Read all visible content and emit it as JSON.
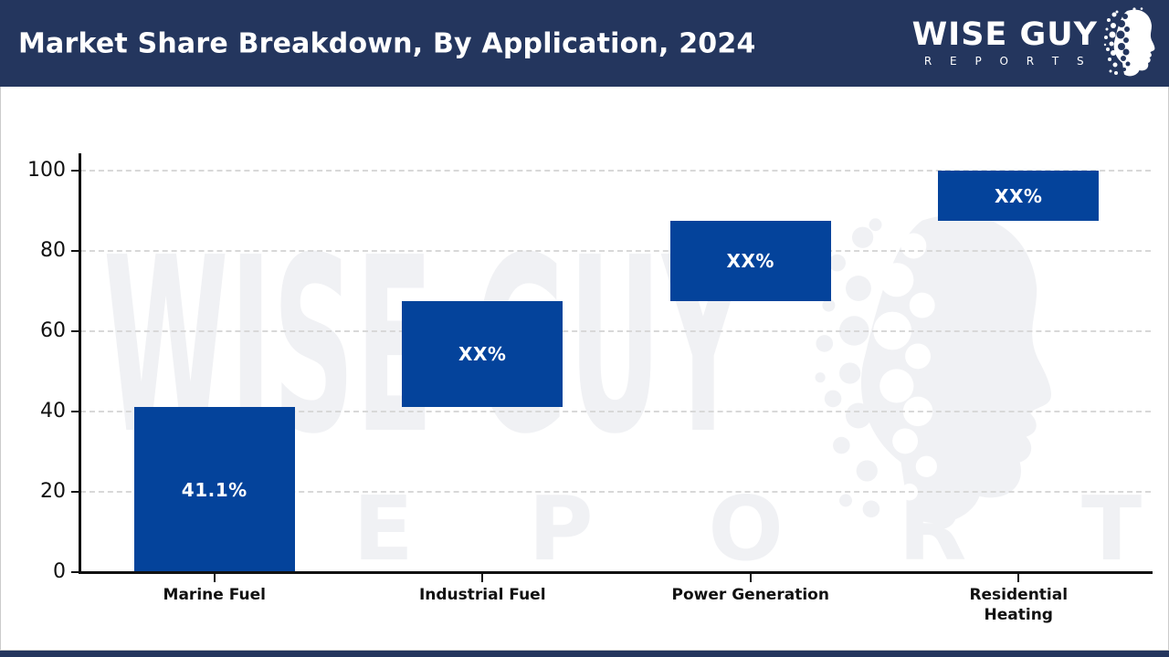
{
  "header": {
    "title": "Market Share Breakdown, By Application, 2024",
    "logo": {
      "name": "WISE GUY",
      "subname": "R E P O R T S"
    }
  },
  "watermark": {
    "line1": "WISE GUY",
    "line2": "R E P O R T S"
  },
  "colors": {
    "header_bg": "#24365E",
    "footer_bg": "#24365E",
    "bar": "#04439B",
    "grid": "#D8D8D8",
    "axis": "#111111",
    "bar_label_text": "#FFFFFF",
    "watermark": "#F0F1F4",
    "frame": "#CBCBCB"
  },
  "icons": {
    "logo_head": "dotted-head-profile-icon"
  },
  "chart_data": {
    "type": "bar",
    "subtype": "waterfall",
    "title": "Market Share Breakdown, By Application, 2024",
    "categories": [
      "Marine Fuel",
      "Industrial Fuel",
      "Power Generation",
      "Residential\nHeating"
    ],
    "bars": [
      {
        "category": "Marine Fuel",
        "start": 0,
        "end": 41.1,
        "label": "41.1%"
      },
      {
        "category": "Industrial Fuel",
        "start": 41.1,
        "end": 67.5,
        "label": "XX%"
      },
      {
        "category": "Power Generation",
        "start": 67.5,
        "end": 87.5,
        "label": "XX%"
      },
      {
        "category": "Residential Heating",
        "start": 87.5,
        "end": 100,
        "label": "XX%"
      }
    ],
    "yticks": [
      0,
      20,
      40,
      60,
      80,
      100
    ],
    "ylim": [
      0,
      104.3
    ],
    "xlabel": "",
    "ylabel": "",
    "grid": "horizontal-dashed",
    "legend": "none"
  }
}
